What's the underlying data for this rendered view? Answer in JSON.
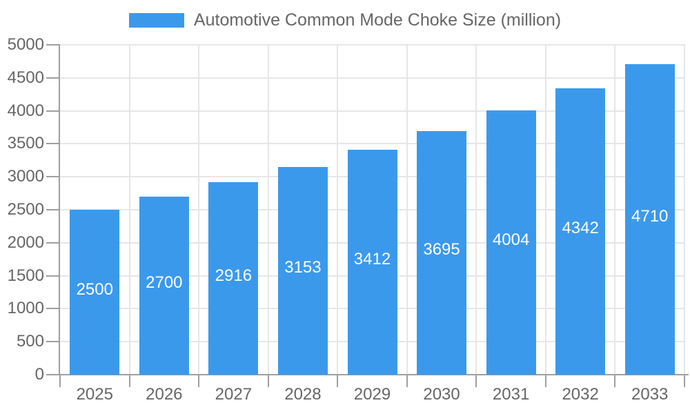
{
  "chart_data": {
    "type": "bar",
    "title": "Automotive Common Mode Choke Size (million)",
    "legend_position": "top",
    "categories": [
      "2025",
      "2026",
      "2027",
      "2028",
      "2029",
      "2030",
      "2031",
      "2032",
      "2033"
    ],
    "values": [
      2500,
      2700,
      2916,
      3153,
      3412,
      3695,
      4004,
      4342,
      4710
    ],
    "value_labels": [
      "2500",
      "2700",
      "2916",
      "3153",
      "3412",
      "3695",
      "4004",
      "4342",
      "4710"
    ],
    "xlabel": "",
    "ylabel": "",
    "ylim": [
      0,
      5000
    ],
    "y_tick_step": 500,
    "y_tick_labels": [
      "0",
      "500",
      "1000",
      "1500",
      "2000",
      "2500",
      "3000",
      "3500",
      "4000",
      "4500",
      "5000"
    ],
    "grid": true,
    "colors": {
      "bar": "#3b99ec",
      "value_label": "#ffffff",
      "axis_text": "#666666",
      "axis_line": "#9e9e9e",
      "gridline": "#e6e6e6",
      "background": "#ffffff"
    }
  }
}
